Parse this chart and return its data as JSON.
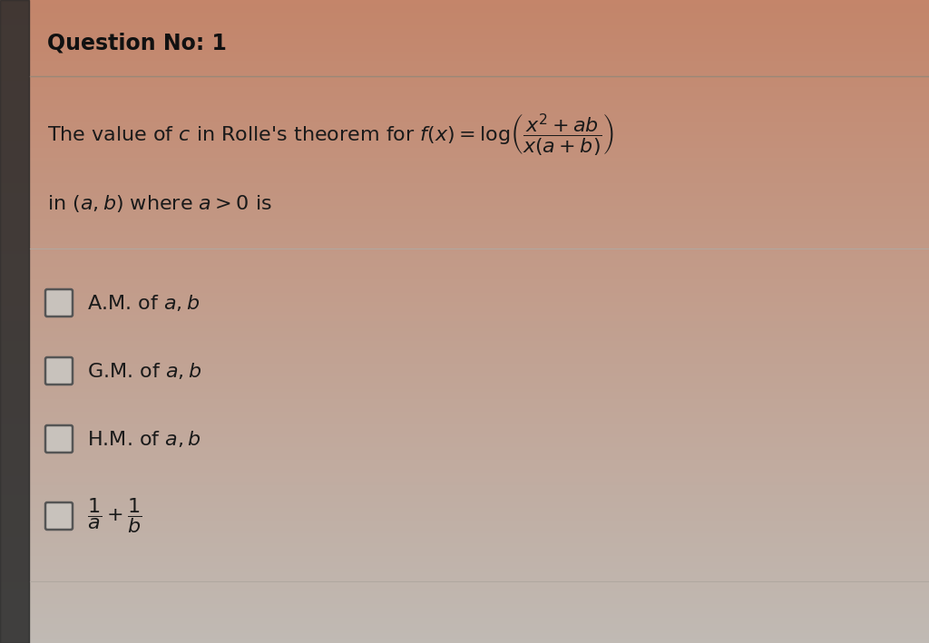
{
  "title": "Question No: 1",
  "options": [
    "A.M. of $a, b$",
    "G.M. of $a, b$",
    "H.M. of $a, b$",
    "$\\dfrac{1}{a} + \\dfrac{1}{b}$"
  ],
  "bg_top_color": "#c4856a",
  "bg_bottom_color": "#c0bab4",
  "left_shadow_color": "#3a3a3a",
  "text_color": "#1a1a1a",
  "separator_color": "#9a8878",
  "separator_color2": "#b0a8a0",
  "checkbox_edge": "#555555",
  "checkbox_face": "#c8c2bc",
  "title_fontsize": 17,
  "body_fontsize": 16,
  "option_fontsize": 16
}
